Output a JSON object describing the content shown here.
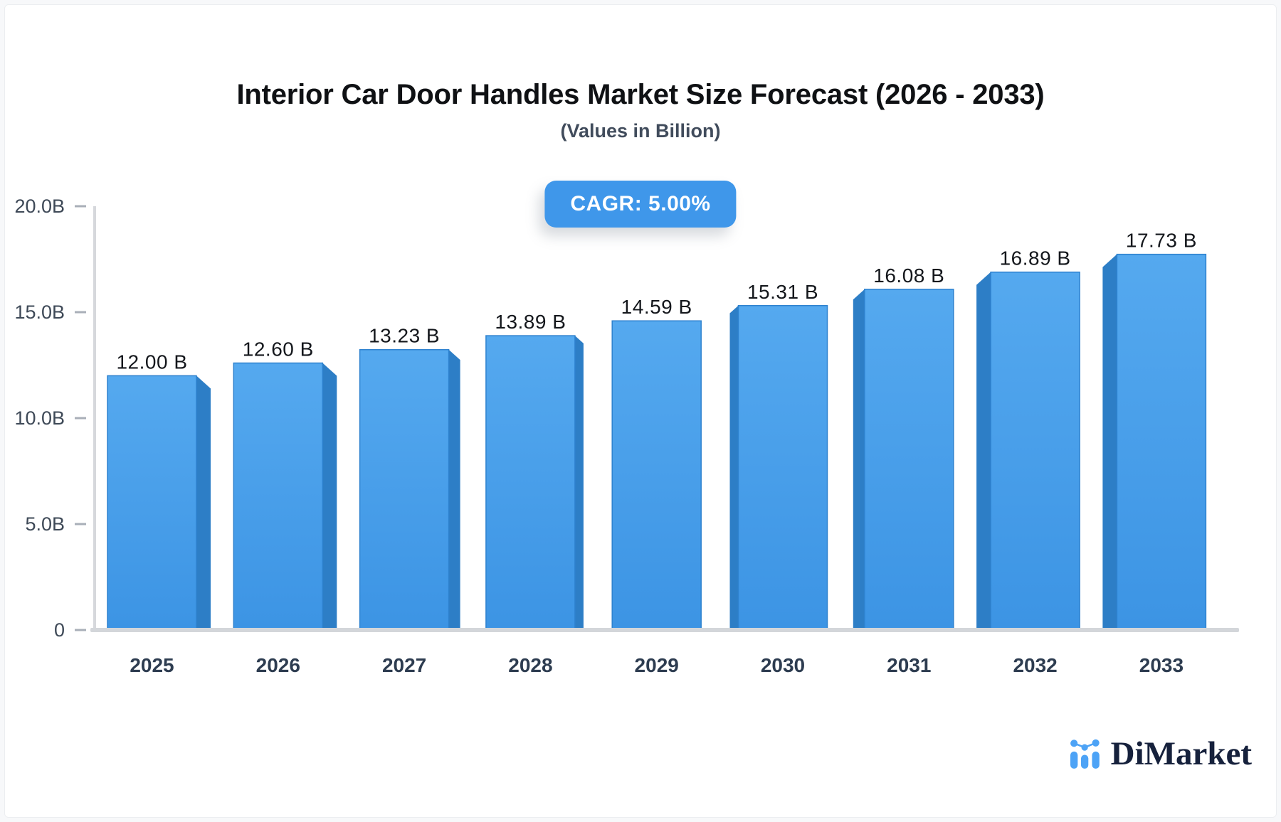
{
  "header": {
    "title": "Interior Car Door Handles Market Size Forecast (2026 - 2033)",
    "subtitle": "(Values in Billion)"
  },
  "badge": {
    "label": "CAGR: 5.00%",
    "bg_color": "#3f97ea",
    "text_color": "#ffffff"
  },
  "brand": {
    "name": "DiMarket",
    "icon": "mini-bar-chart-logo-icon",
    "icon_color": "#4da3f6",
    "text_color": "#16213c"
  },
  "chart_data": {
    "type": "bar",
    "title": "Interior Car Door Handles Market Size Forecast (2026 - 2033)",
    "subtitle": "(Values in Billion)",
    "categories": [
      "2025",
      "2026",
      "2027",
      "2028",
      "2029",
      "2030",
      "2031",
      "2032",
      "2033"
    ],
    "values": [
      12.0,
      12.6,
      13.23,
      13.89,
      14.59,
      15.31,
      16.08,
      16.89,
      17.73
    ],
    "value_labels": [
      "12.00 B",
      "12.60 B",
      "13.23 B",
      "13.89 B",
      "14.59 B",
      "15.31 B",
      "16.08 B",
      "16.89 B",
      "17.73 B"
    ],
    "cagr_label": "CAGR: 5.00%",
    "xlabel": "",
    "ylabel": "",
    "ylim": [
      0,
      20
    ],
    "yticks": [
      0,
      5,
      10,
      15,
      20
    ],
    "ytick_labels": [
      "0",
      "5.0B",
      "10.0B",
      "15.0B",
      "20.0B"
    ],
    "grid": false,
    "legend": false,
    "bar_color_top": "#55a9ef",
    "bar_color_bottom": "#3c94e4",
    "bar_side_color": "#2d7ec6",
    "bar_border_color": "#2e82cf",
    "axis_color": "#d6d8dc",
    "tick_label_color": "#3e4957",
    "x_label_color": "#2d3c50",
    "value_label_color": "#14171c"
  }
}
